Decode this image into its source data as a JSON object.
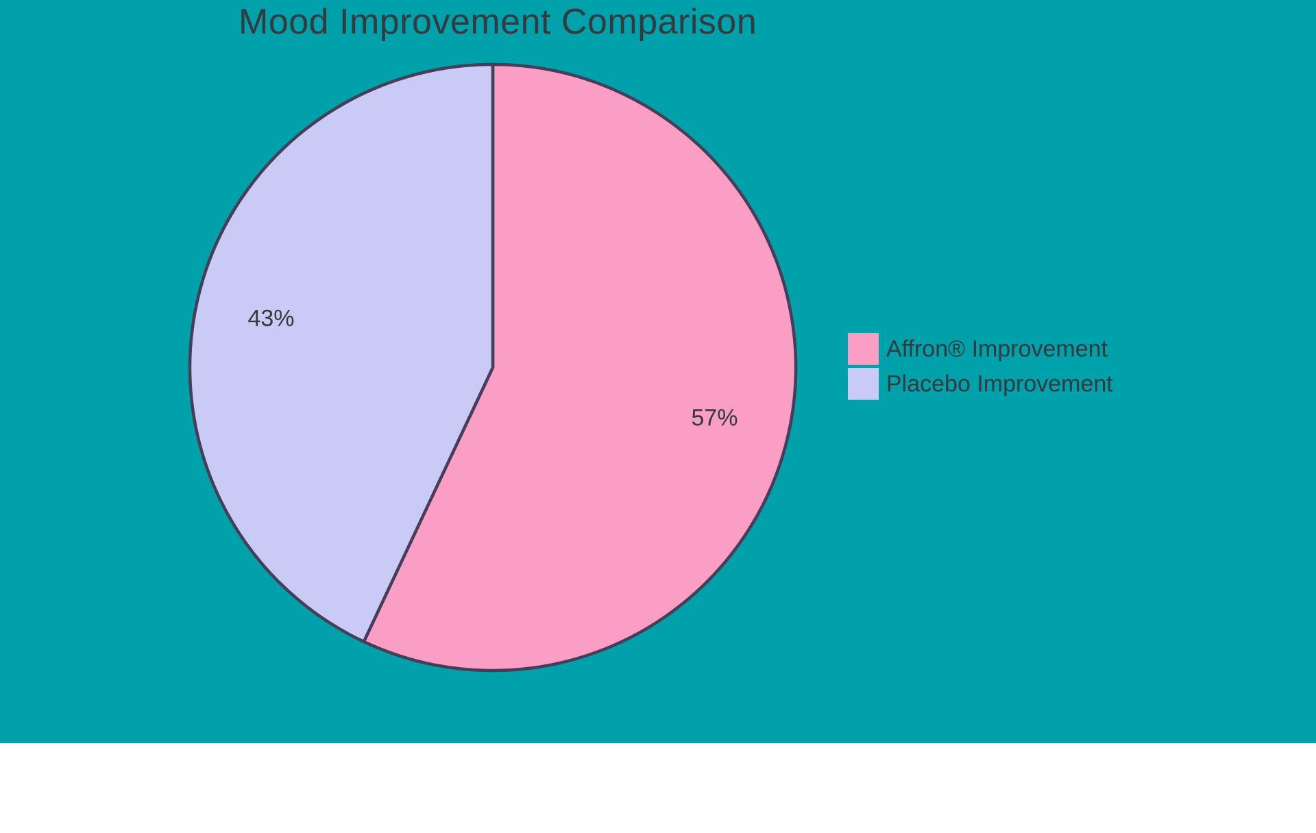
{
  "page": {
    "canvas_color": "#00A1AA",
    "bottom_strip_color": "#ffffff",
    "text_color": "#343A3E"
  },
  "chart_data": {
    "type": "pie",
    "title": "Mood Improvement Comparison",
    "categories": [
      "Affron® Improvement",
      "Placebo Improvement"
    ],
    "values": [
      57,
      43
    ],
    "value_labels": [
      "57%",
      "43%"
    ],
    "unit": "%",
    "colors": [
      "#FA9EC6",
      "#C9CAF6"
    ],
    "border_color": "#463E58",
    "start_angle_deg": 0,
    "direction": "clockwise",
    "legend_position": "right",
    "grid": false
  },
  "legend": {
    "items": [
      {
        "label": "Affron® Improvement",
        "color": "#FA9EC6"
      },
      {
        "label": "Placebo Improvement",
        "color": "#C9CAF6"
      }
    ]
  }
}
